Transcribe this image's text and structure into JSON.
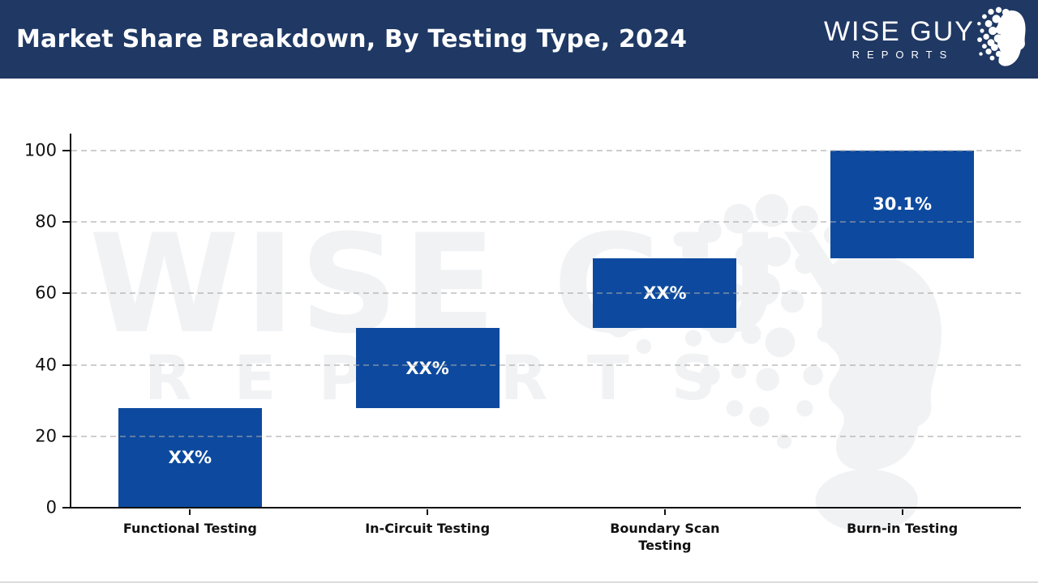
{
  "colors": {
    "header_bg": "#1f3864",
    "bar_color": "#0d4a9f",
    "axis": "#111111",
    "grid": "rgba(166,166,166,0.55)",
    "watermark": "#f1f2f4",
    "footer_rule": "#dcdcdc",
    "text_dark": "#111111"
  },
  "header": {
    "title": "Market Share Breakdown, By Testing Type, 2024",
    "logo": {
      "name": "WISE GUY",
      "subtitle": "REPORTS"
    }
  },
  "watermark": {
    "name": "WISE GUY",
    "subtitle": "REPORTS"
  },
  "chart_data": {
    "type": "bar",
    "subtype": "waterfall",
    "title": "Market Share Breakdown, By Testing Type, 2024",
    "xlabel": "",
    "ylabel": "",
    "ylim": [
      0,
      105
    ],
    "yticks": [
      0,
      20,
      40,
      60,
      80,
      100
    ],
    "grid": "horizontal-dashed",
    "legend": "none",
    "categories": [
      "Functional Testing",
      "In-Circuit Testing",
      "Boundary Scan Testing",
      "Burn-in Testing"
    ],
    "values": [
      27.9,
      22.4,
      19.6,
      30.1
    ],
    "segments": [
      {
        "category": "Functional Testing",
        "start": 0,
        "end": 27.9,
        "label": "XX%"
      },
      {
        "category": "In-Circuit Testing",
        "start": 27.9,
        "end": 50.3,
        "label": "XX%"
      },
      {
        "category": "Boundary Scan Testing",
        "start": 50.3,
        "end": 69.9,
        "label": "XX%"
      },
      {
        "category": "Burn-in Testing",
        "start": 69.9,
        "end": 100,
        "label": "30.1%"
      }
    ]
  }
}
